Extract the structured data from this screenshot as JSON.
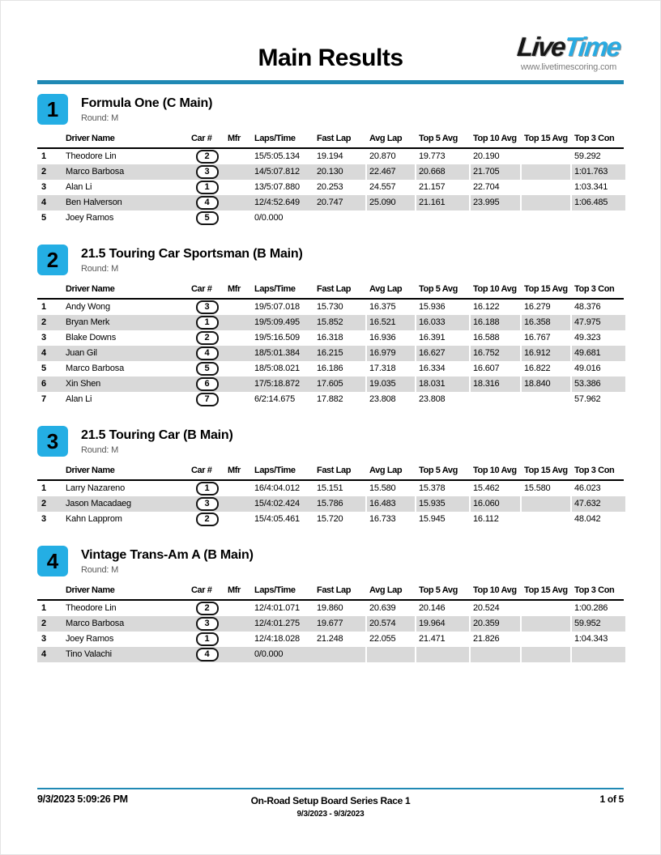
{
  "title": "Main Results",
  "logo": {
    "live": "Live",
    "time": "Time",
    "url": "www.livetimescoring.com"
  },
  "colors": {
    "accent_badge": "#24AEE4",
    "rule": "#2089B4",
    "stripe": "#D9D9D9",
    "logo_time": "#29ABE2",
    "muted_text": "#595959"
  },
  "columns": [
    "",
    "Driver Name",
    "Car #",
    "Mfr",
    "Laps/Time",
    "Fast Lap",
    "Avg Lap",
    "Top 5 Avg",
    "Top 10 Avg",
    "Top 15 Avg",
    "Top 3 Con"
  ],
  "sections": [
    {
      "number": "1",
      "title": "Formula One (C Main)",
      "round": "Round: M",
      "rows": [
        [
          "1",
          "Theodore Lin",
          "2",
          "",
          "15/5:05.134",
          "19.194",
          "20.870",
          "19.773",
          "20.190",
          "",
          "59.292"
        ],
        [
          "2",
          "Marco Barbosa",
          "3",
          "",
          "14/5:07.812",
          "20.130",
          "22.467",
          "20.668",
          "21.705",
          "",
          "1:01.763"
        ],
        [
          "3",
          "Alan Li",
          "1",
          "",
          "13/5:07.880",
          "20.253",
          "24.557",
          "21.157",
          "22.704",
          "",
          "1:03.341"
        ],
        [
          "4",
          "Ben Halverson",
          "4",
          "",
          "12/4:52.649",
          "20.747",
          "25.090",
          "21.161",
          "23.995",
          "",
          "1:06.485"
        ],
        [
          "5",
          "Joey Ramos",
          "5",
          "",
          "0/0.000",
          "",
          "",
          "",
          "",
          "",
          ""
        ]
      ]
    },
    {
      "number": "2",
      "title": "21.5 Touring Car Sportsman (B Main)",
      "round": "Round: M",
      "rows": [
        [
          "1",
          "Andy Wong",
          "3",
          "",
          "19/5:07.018",
          "15.730",
          "16.375",
          "15.936",
          "16.122",
          "16.279",
          "48.376"
        ],
        [
          "2",
          "Bryan Merk",
          "1",
          "",
          "19/5:09.495",
          "15.852",
          "16.521",
          "16.033",
          "16.188",
          "16.358",
          "47.975"
        ],
        [
          "3",
          "Blake Downs",
          "2",
          "",
          "19/5:16.509",
          "16.318",
          "16.936",
          "16.391",
          "16.588",
          "16.767",
          "49.323"
        ],
        [
          "4",
          "Juan Gil",
          "4",
          "",
          "18/5:01.384",
          "16.215",
          "16.979",
          "16.627",
          "16.752",
          "16.912",
          "49.681"
        ],
        [
          "5",
          "Marco Barbosa",
          "5",
          "",
          "18/5:08.021",
          "16.186",
          "17.318",
          "16.334",
          "16.607",
          "16.822",
          "49.016"
        ],
        [
          "6",
          "Xin Shen",
          "6",
          "",
          "17/5:18.872",
          "17.605",
          "19.035",
          "18.031",
          "18.316",
          "18.840",
          "53.386"
        ],
        [
          "7",
          "Alan Li",
          "7",
          "",
          "6/2:14.675",
          "17.882",
          "23.808",
          "23.808",
          "",
          "",
          "57.962"
        ]
      ]
    },
    {
      "number": "3",
      "title": "21.5 Touring Car  (B Main)",
      "round": "Round: M",
      "rows": [
        [
          "1",
          "Larry Nazareno",
          "1",
          "",
          "16/4:04.012",
          "15.151",
          "15.580",
          "15.378",
          "15.462",
          "15.580",
          "46.023"
        ],
        [
          "2",
          "Jason Macadaeg",
          "3",
          "",
          "15/4:02.424",
          "15.786",
          "16.483",
          "15.935",
          "16.060",
          "",
          "47.632"
        ],
        [
          "3",
          "Kahn Lapprom",
          "2",
          "",
          "15/4:05.461",
          "15.720",
          "16.733",
          "15.945",
          "16.112",
          "",
          "48.042"
        ]
      ]
    },
    {
      "number": "4",
      "title": "Vintage Trans-Am A (B Main)",
      "round": "Round: M",
      "rows": [
        [
          "1",
          "Theodore Lin",
          "2",
          "",
          "12/4:01.071",
          "19.860",
          "20.639",
          "20.146",
          "20.524",
          "",
          "1:00.286"
        ],
        [
          "2",
          "Marco Barbosa",
          "3",
          "",
          "12/4:01.275",
          "19.677",
          "20.574",
          "19.964",
          "20.359",
          "",
          "59.952"
        ],
        [
          "3",
          "Joey Ramos",
          "1",
          "",
          "12/4:18.028",
          "21.248",
          "22.055",
          "21.471",
          "21.826",
          "",
          "1:04.343"
        ],
        [
          "4",
          "Tino Valachi",
          "4",
          "",
          "0/0.000",
          "",
          "",
          "",
          "",
          "",
          ""
        ]
      ]
    }
  ],
  "footer": {
    "timestamp": "9/3/2023 5:09:26 PM",
    "event_title": "On-Road Setup Board Series Race 1",
    "event_dates": "9/3/2023 - 9/3/2023",
    "page_number": "1 of 5"
  }
}
